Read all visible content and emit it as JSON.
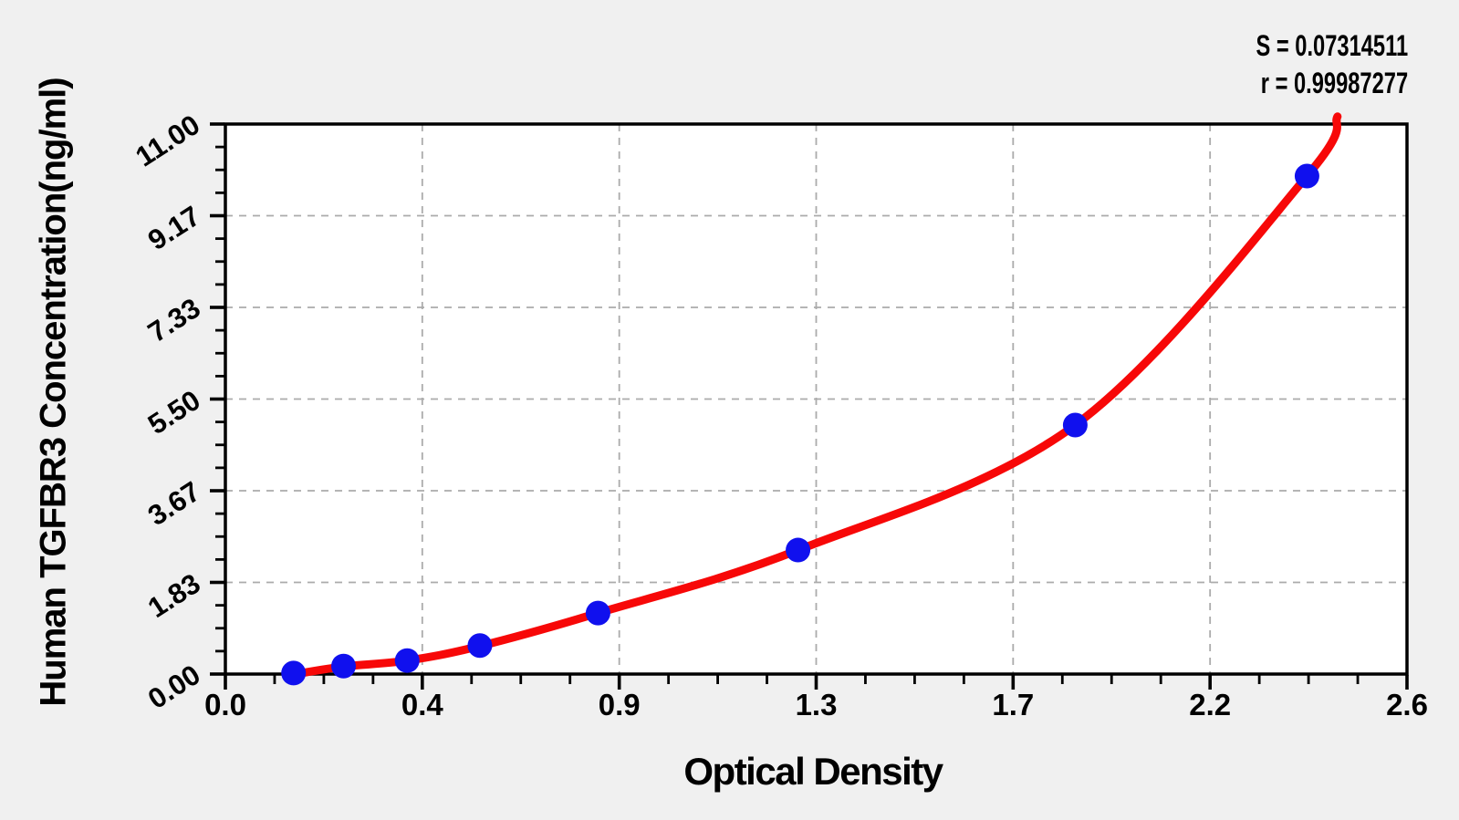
{
  "figure": {
    "background_color": "#f0f0f0",
    "plot_background_color": "#ffffff",
    "frame_color": "#000000"
  },
  "stats": {
    "s_text": "S = 0.07314511",
    "r_text": "r = 0.99987277"
  },
  "chart_data": {
    "type": "scatter",
    "title": "",
    "xlabel": "Optical Density",
    "ylabel": "Human TGFBR3 Concentration(ng/ml)",
    "xlim": [
      0,
      2.6
    ],
    "ylim": [
      0,
      11
    ],
    "legend": "none",
    "grid": {
      "visible": true,
      "style": "dashed",
      "color": "#ababab",
      "at": "interior-major-ticks"
    },
    "x_axis": {
      "major_tick_values": [
        0,
        0.4333,
        0.8667,
        1.3,
        1.7333,
        2.1667,
        2.6
      ],
      "major_tick_labels": [
        "0.0",
        "0.4",
        "0.9",
        "1.3",
        "1.7",
        "2.2",
        "2.6"
      ],
      "minor_ticks_per_interval": 3
    },
    "y_axis": {
      "major_tick_values": [
        0,
        1.8333,
        3.6667,
        5.5,
        7.3333,
        9.1667,
        11
      ],
      "major_tick_labels": [
        "0.00",
        "1.83",
        "3.67",
        "5.50",
        "7.33",
        "9.17",
        "11.00"
      ],
      "minor_ticks_per_interval": 3
    },
    "fit_statistics": {
      "S": "0.07314511",
      "r": "0.99987277"
    },
    "series": [
      {
        "name": "standard-points",
        "type": "scatter",
        "marker": "circle",
        "marker_color": "#1010ee",
        "points_od_conc": [
          [
            0.15,
            0.02
          ],
          [
            0.26,
            0.16
          ],
          [
            0.4,
            0.27
          ],
          [
            0.56,
            0.57
          ],
          [
            0.82,
            1.22
          ],
          [
            1.26,
            2.48
          ],
          [
            1.87,
            4.98
          ],
          [
            2.38,
            9.96
          ]
        ]
      },
      {
        "name": "fitted-curve",
        "type": "line",
        "color": "#f70808",
        "points_od_conc": [
          [
            0.155,
            0.0
          ],
          [
            0.26,
            0.15
          ],
          [
            0.4,
            0.27
          ],
          [
            0.56,
            0.56
          ],
          [
            0.82,
            1.22
          ],
          [
            1.26,
            2.48
          ],
          [
            1.87,
            4.98
          ],
          [
            2.38,
            9.96
          ],
          [
            2.447,
            11.15
          ]
        ]
      }
    ]
  }
}
